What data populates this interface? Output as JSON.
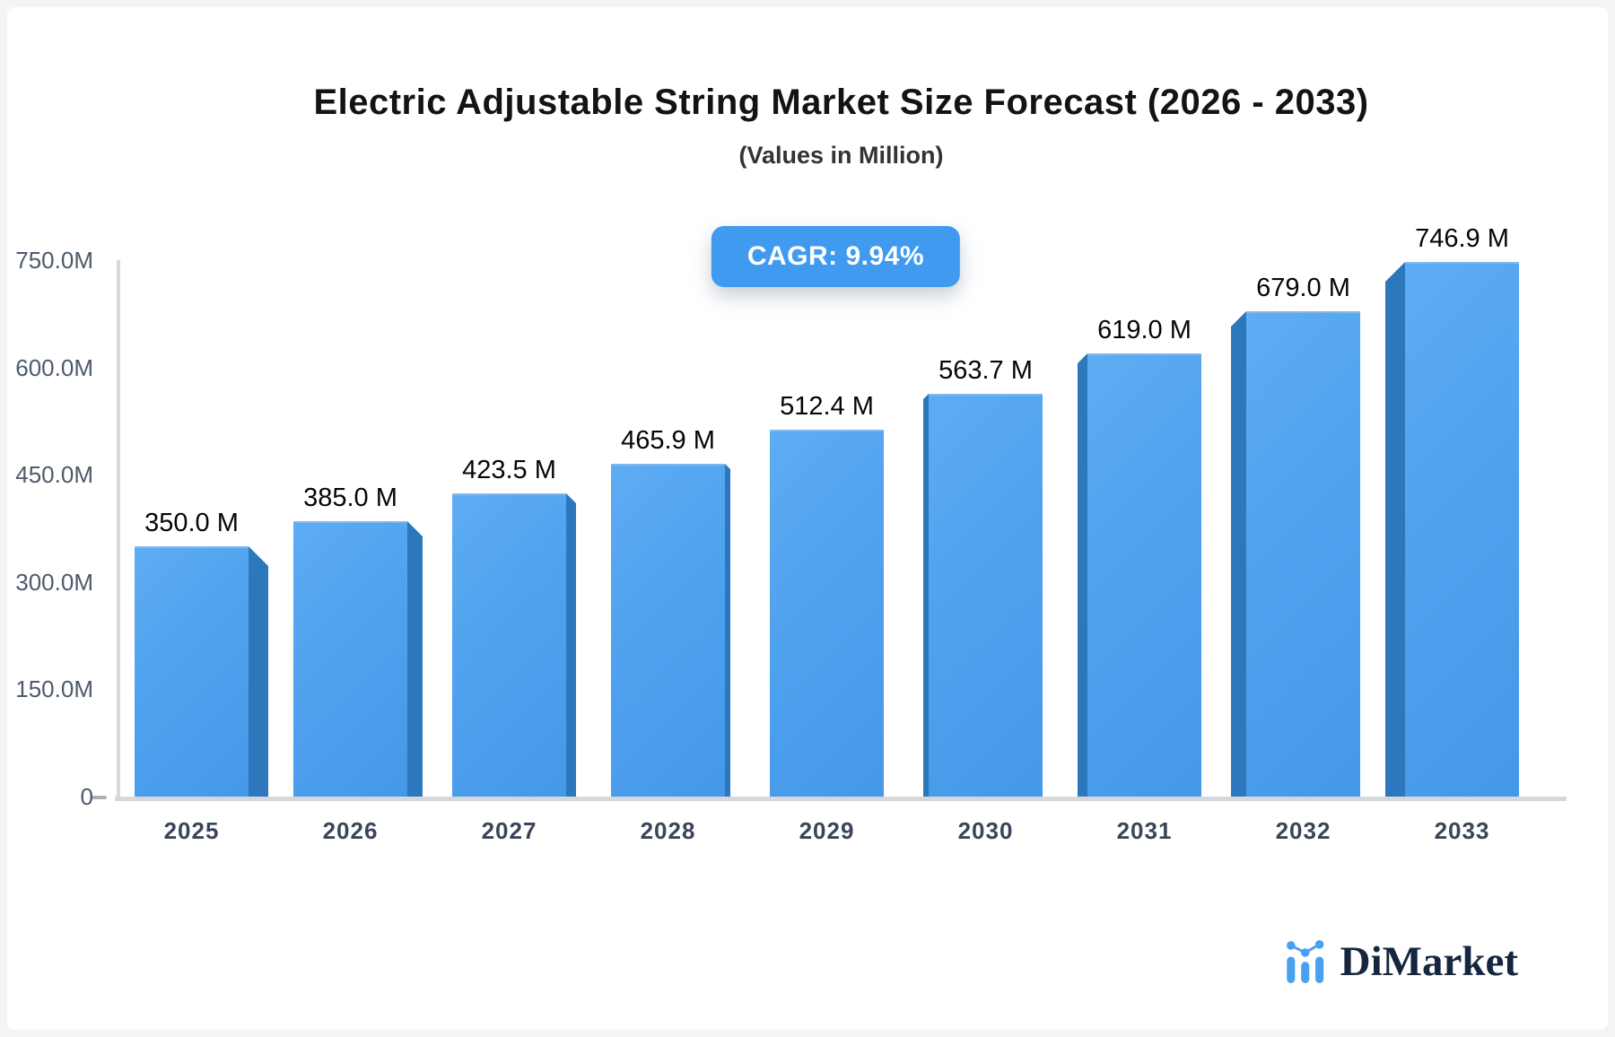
{
  "page": {
    "background": "#f3f4f6",
    "card_background": "#ffffff"
  },
  "header": {
    "title": "Electric Adjustable String Market Size Forecast (2026 - 2033)",
    "subtitle": "(Values in Million)"
  },
  "badge": {
    "label": "CAGR: 9.94%",
    "background": "#3f9af0",
    "text_color": "#ffffff"
  },
  "chart_data": {
    "type": "bar",
    "title": "Electric Adjustable String Market Size Forecast (2026 - 2033)",
    "subtitle": "(Values in Million)",
    "unit": "Million",
    "categories": [
      "2025",
      "2026",
      "2027",
      "2028",
      "2029",
      "2030",
      "2031",
      "2032",
      "2033"
    ],
    "values": [
      350.0,
      385.0,
      423.5,
      465.9,
      512.4,
      563.7,
      619.0,
      679.0,
      746.9
    ],
    "value_labels": [
      "350.0 M",
      "385.0 M",
      "423.5 M",
      "465.9 M",
      "512.4 M",
      "563.7 M",
      "619.0 M",
      "679.0 M",
      "746.9 M"
    ],
    "ylim": [
      0,
      750
    ],
    "y_ticks": [
      {
        "value": 0,
        "label": "0"
      },
      {
        "value": 150,
        "label": "150.0M"
      },
      {
        "value": 300,
        "label": "300.0M"
      },
      {
        "value": 450,
        "label": "450.0M"
      },
      {
        "value": 600,
        "label": "600.0M"
      },
      {
        "value": 750,
        "label": "750.0M"
      }
    ],
    "grid": false,
    "legend": false,
    "bar_face_color": "#4fa2ee",
    "bar_side_color": "#2d78bd",
    "axis_color": "#d6d8db",
    "style": "3d-perspective-center"
  },
  "footer": {
    "brand": "DiMarket",
    "logo_icon": "mini-bar-chart-with-trend-dots-icon",
    "logo_color": "#4aa0f0",
    "brand_color": "#16263f"
  }
}
